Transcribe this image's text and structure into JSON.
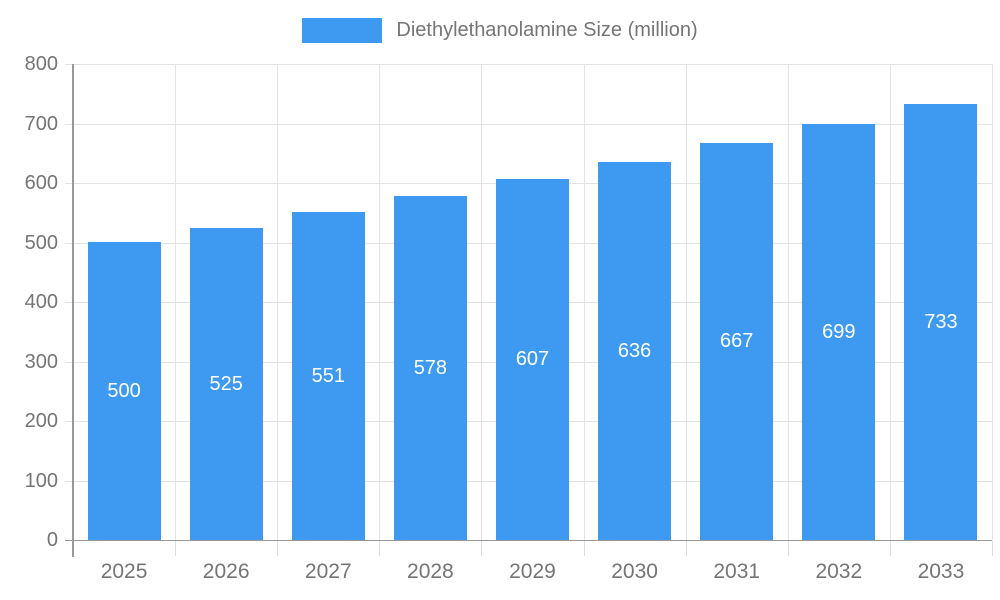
{
  "chart_data": {
    "type": "bar",
    "title": "Diethylethanolamine Size (million)",
    "legend": {
      "position": "top",
      "entries": [
        "Diethylethanolamine Size (million)"
      ]
    },
    "categories": [
      "2025",
      "2026",
      "2027",
      "2028",
      "2029",
      "2030",
      "2031",
      "2032",
      "2033"
    ],
    "values": [
      500,
      525,
      551,
      578,
      607,
      636,
      667,
      699,
      733
    ],
    "value_labels": [
      "500",
      "525",
      "551",
      "578",
      "607",
      "636",
      "667",
      "699",
      "733"
    ],
    "xlabel": "",
    "ylabel": "",
    "ylim": [
      0,
      800
    ],
    "yticks": [
      0,
      100,
      200,
      300,
      400,
      500,
      600,
      700,
      800
    ],
    "grid": true,
    "colors": {
      "bar": "#3d9af0",
      "grid": "#e3e3e3",
      "axis": "#999999",
      "tick": "#dddddd",
      "text": "#757575",
      "value_label": "#ffffff",
      "background": "#ffffff"
    }
  }
}
